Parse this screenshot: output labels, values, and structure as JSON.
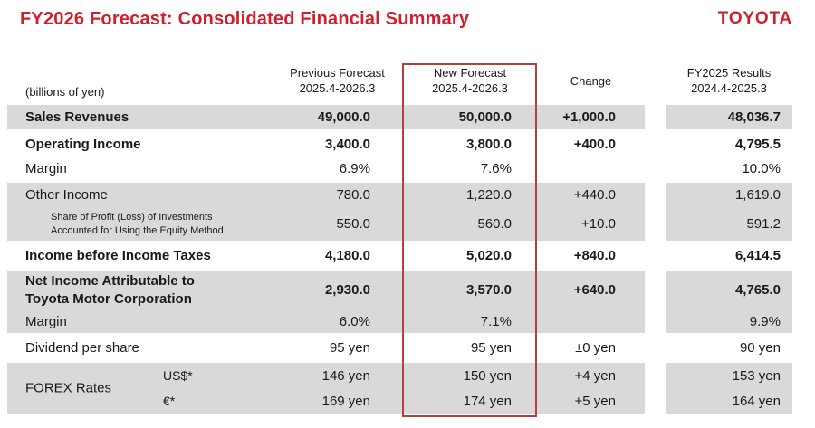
{
  "page": {
    "title": "FY2026 Forecast: Consolidated Financial Summary",
    "brand": "TOYOTA",
    "unit_note": "(billions of yen)"
  },
  "columns": {
    "previous": "Previous Forecast\n2025.4-2026.3",
    "new": "New Forecast\n2025.4-2026.3",
    "change": "Change",
    "fy2025": "FY2025 Results\n2024.4-2025.3"
  },
  "rows": [
    {
      "label": "Sales Revenues",
      "previous": "49,000.0",
      "new": "50,000.0",
      "change": "+1,000.0",
      "fy2025": "48,036.7"
    },
    {
      "label": "Operating Income",
      "previous": "3,400.0",
      "new": "3,800.0",
      "change": "+400.0",
      "fy2025": "4,795.5"
    },
    {
      "label": "Margin",
      "previous": "6.9%",
      "new": "7.6%",
      "change": "",
      "fy2025": "10.0%"
    },
    {
      "label": "Other Income",
      "previous": "780.0",
      "new": "1,220.0",
      "change": "+440.0",
      "fy2025": "1,619.0"
    },
    {
      "label": "Share of Profit (Loss) of Investments\nAccounted for Using the Equity Method",
      "previous": "550.0",
      "new": "560.0",
      "change": "+10.0",
      "fy2025": "591.2"
    },
    {
      "label": "Income before Income Taxes",
      "previous": "4,180.0",
      "new": "5,020.0",
      "change": "+840.0",
      "fy2025": "6,414.5"
    },
    {
      "label": "Net Income Attributable to\nToyota Motor Corporation",
      "previous": "2,930.0",
      "new": "3,570.0",
      "change": "+640.0",
      "fy2025": "4,765.0"
    },
    {
      "label": "Margin",
      "previous": "6.0%",
      "new": "7.1%",
      "change": "",
      "fy2025": "9.9%"
    },
    {
      "label": "Dividend per share",
      "previous": "95 yen",
      "new": "95 yen",
      "change": "±0 yen",
      "fy2025": "90 yen"
    }
  ],
  "forex": {
    "group_label": "FOREX Rates",
    "rows": [
      {
        "label": "US$*",
        "previous": "146 yen",
        "new": "150 yen",
        "change": "+4 yen",
        "fy2025": "153 yen"
      },
      {
        "label": "€*",
        "previous": "169 yen",
        "new": "174 yen",
        "change": "+5 yen",
        "fy2025": "164 yen"
      }
    ]
  },
  "colors": {
    "accent_red": "#d0202e",
    "highlight_box_red": "#b4403a",
    "row_band_gray": "#d9d9d9"
  }
}
